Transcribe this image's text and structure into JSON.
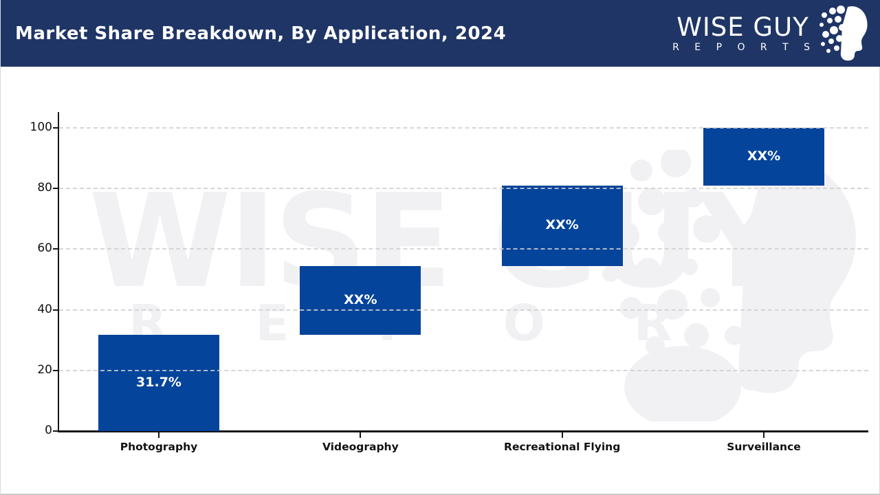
{
  "header": {
    "title": "Market Share Breakdown, By Application, 2024",
    "bg_color": "#1F3566",
    "logo": {
      "line1": "WISE GUY",
      "line2": "R E P O R T S",
      "icon": "dotted-face-icon"
    }
  },
  "watermark": {
    "line1": "WISE GUY",
    "line2": "R E P O R T S"
  },
  "chart_data": {
    "type": "bar",
    "subtype": "waterfall",
    "title": "Market Share Breakdown, By Application, 2024",
    "categories": [
      "Photography",
      "Videography",
      "Recreational Flying",
      "Surveillance"
    ],
    "segments": [
      {
        "category": "Photography",
        "start": 0,
        "end": 31.7,
        "label": "31.7%"
      },
      {
        "category": "Videography",
        "start": 31.7,
        "end": 54.4,
        "label": "XX%"
      },
      {
        "category": "Recreational Flying",
        "start": 54.4,
        "end": 81.0,
        "label": "XX%"
      },
      {
        "category": "Surveillance",
        "start": 81.0,
        "end": 100.0,
        "label": "XX%"
      }
    ],
    "yticks": [
      0,
      20,
      40,
      60,
      80,
      100
    ],
    "ylim": [
      0,
      105
    ],
    "xlabel": "",
    "ylabel": "",
    "bar_color": "#05449B",
    "grid": true,
    "grid_style": "dashed",
    "grid_color": "#cfcfcf",
    "axis_color": "#161616",
    "legend": false
  }
}
